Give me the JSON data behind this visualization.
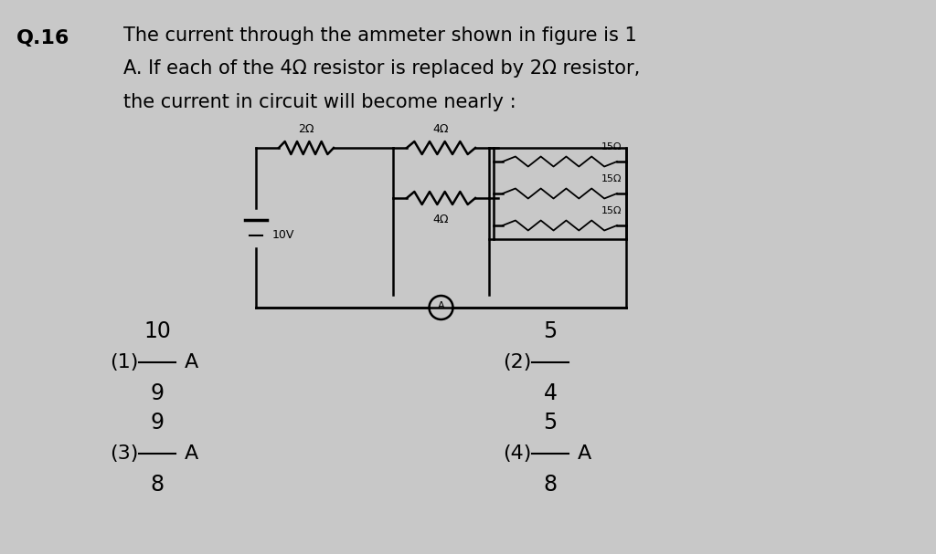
{
  "bg_color": "#c8c8c8",
  "question_number": "Q.16",
  "question_text": "The current through the ammeter shown in figure is 1\nA. If each of the 4Ω resistor is replaced by 2Ω resistor,\nthe current in circuit will become nearly :",
  "options": [
    {
      "num": "(1)",
      "numerator": "10",
      "denominator": "9",
      "unit": "A"
    },
    {
      "num": "(2)",
      "numerator": "5",
      "denominator": "4",
      "unit": ""
    },
    {
      "num": "(3)",
      "numerator": "9",
      "denominator": "8",
      "unit": "A"
    },
    {
      "num": "(4)",
      "numerator": "5",
      "denominator": "8",
      "unit": "A"
    }
  ],
  "circuit": {
    "voltage": "10V",
    "r_series": "2Ω",
    "r_parallel_top": "4Ω",
    "r_parallel_mid": "4Ω",
    "r_right_top": "15Ω",
    "r_right_mid": "15Ω",
    "r_right_bot": "15Ω",
    "ammeter": "A"
  }
}
